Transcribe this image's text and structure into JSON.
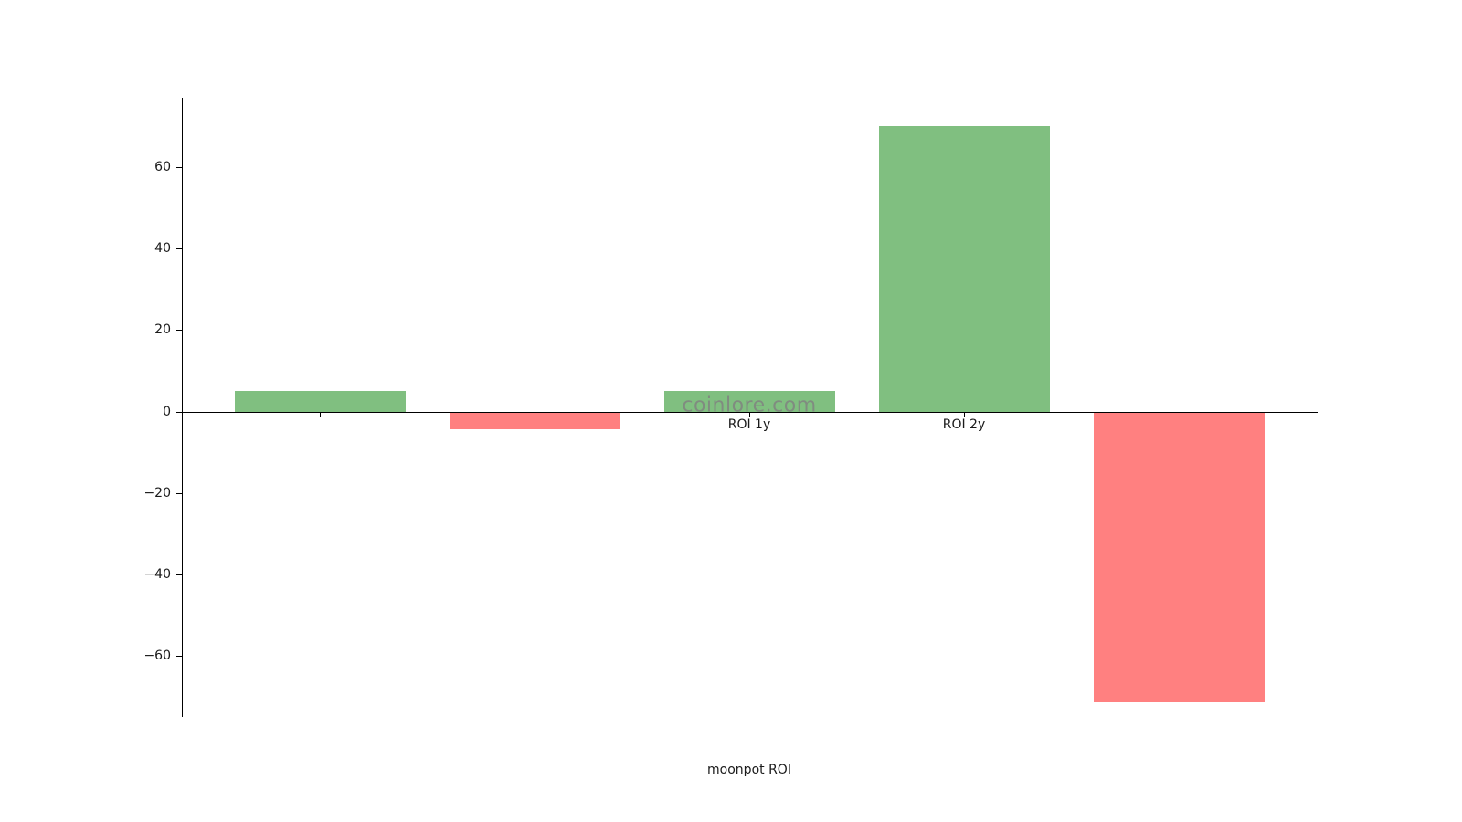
{
  "page": {
    "background": "#ffffff"
  },
  "watermark": {
    "text": "coinlore.com"
  },
  "chart_data": {
    "type": "bar",
    "title": "",
    "xlabel": "moonpot ROI",
    "ylabel": "",
    "categories": [
      "",
      "",
      "ROI 1y",
      "ROI 2y",
      ""
    ],
    "values": [
      5,
      -4,
      5,
      70,
      -71
    ],
    "xticks_shown": [
      {
        "bar_index": 0,
        "label": ""
      },
      {
        "bar_index": 2,
        "label": "ROI 1y"
      },
      {
        "bar_index": 3,
        "label": "ROI 2y"
      }
    ],
    "yticks": [
      60,
      40,
      20,
      0,
      -20,
      -40,
      -60
    ],
    "ylim": [
      -75,
      77
    ],
    "grid": false,
    "legend": "none",
    "colors": {
      "positive_bar": "#80bf80",
      "negative_bar": "#ff8080",
      "axis": "#000000",
      "tick_label": "#1a1a1a",
      "watermark": "#969696"
    }
  }
}
